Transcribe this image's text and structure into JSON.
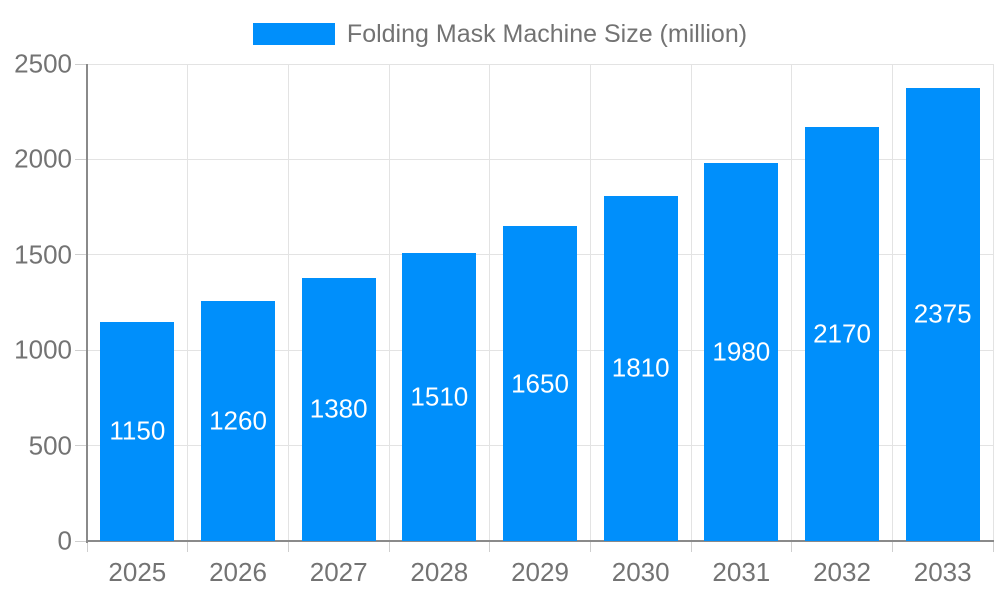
{
  "chart_data": {
    "type": "bar",
    "title": "",
    "legend_position": "top",
    "legend": [
      "Folding Mask Machine Size (million)"
    ],
    "categories": [
      "2025",
      "2026",
      "2027",
      "2028",
      "2029",
      "2030",
      "2031",
      "2032",
      "2033"
    ],
    "series": [
      {
        "name": "Folding Mask Machine Size (million)",
        "values": [
          1150,
          1260,
          1380,
          1510,
          1650,
          1810,
          1980,
          2170,
          2375
        ]
      }
    ],
    "data_labels": [
      "1150",
      "1260",
      "1380",
      "1510",
      "1650",
      "1810",
      "1980",
      "2170",
      "2375"
    ],
    "xlabel": "",
    "ylabel": "",
    "ylim": [
      0,
      2500
    ],
    "yticks": [
      0,
      500,
      1000,
      1500,
      2000,
      2500
    ],
    "ytick_labels": [
      "0",
      "500",
      "1000",
      "1500",
      "2000",
      "2500"
    ],
    "grid": true,
    "colors": {
      "bar": "#008ffb",
      "axis": "#8a8a8a",
      "gridline": "#e3e3e3",
      "tick_text": "#737373",
      "legend_text": "#737373",
      "data_label_text": "#ffffff",
      "background": "#ffffff"
    }
  }
}
